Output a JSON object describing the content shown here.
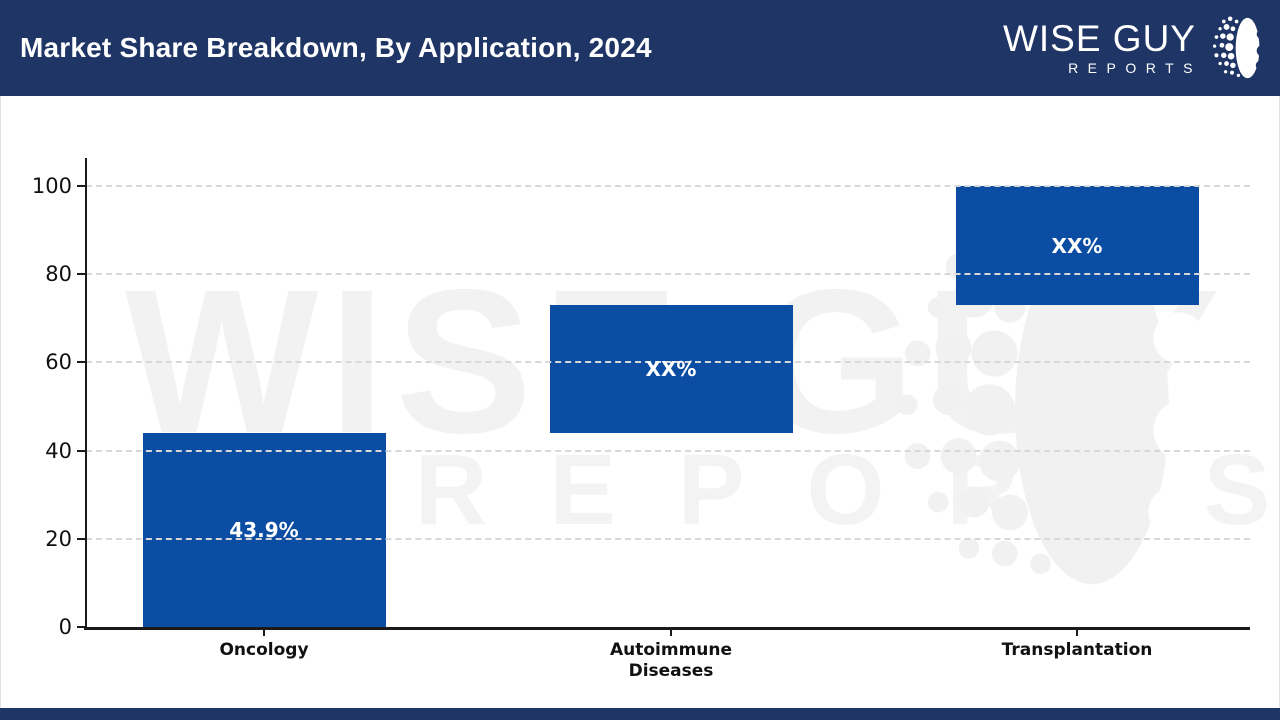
{
  "header": {
    "title": "Market Share Breakdown, By Application, 2024",
    "bg_color": "#1e3565",
    "logo": {
      "line1": "WISE GUY",
      "line2": "REPORTS"
    }
  },
  "watermark": {
    "line1": "WISE GUY",
    "line2": "REPORTS"
  },
  "footer": {
    "bg_color": "#1e3565"
  },
  "chart_data": {
    "type": "bar",
    "variant": "floating-waterfall",
    "title": "Market Share Breakdown, By Application, 2024",
    "categories": [
      "Oncology",
      "Autoimmune Diseases",
      "Transplantation"
    ],
    "category_label_lines": [
      [
        "Oncology"
      ],
      [
        "Autoimmune",
        "Diseases"
      ],
      [
        "Transplantation"
      ]
    ],
    "bars": [
      {
        "category": "Oncology",
        "start": 0,
        "end": 43.9,
        "label": "43.9%"
      },
      {
        "category": "Autoimmune Diseases",
        "start": 43.9,
        "end": 73,
        "label": "XX%"
      },
      {
        "category": "Transplantation",
        "start": 73,
        "end": 100,
        "label": "XX%"
      }
    ],
    "xlabel": "",
    "ylabel": "",
    "ylim": [
      0,
      100
    ],
    "yticks": [
      0,
      20,
      40,
      60,
      80,
      100
    ],
    "grid": {
      "horizontal": true,
      "style": "dashed",
      "color": "#d8d8d8",
      "above_bars": true
    },
    "legend": "none",
    "bar_color": "#0b4da2",
    "bar_label_color": "#ffffff",
    "axis_color": "#1a1a1a"
  }
}
